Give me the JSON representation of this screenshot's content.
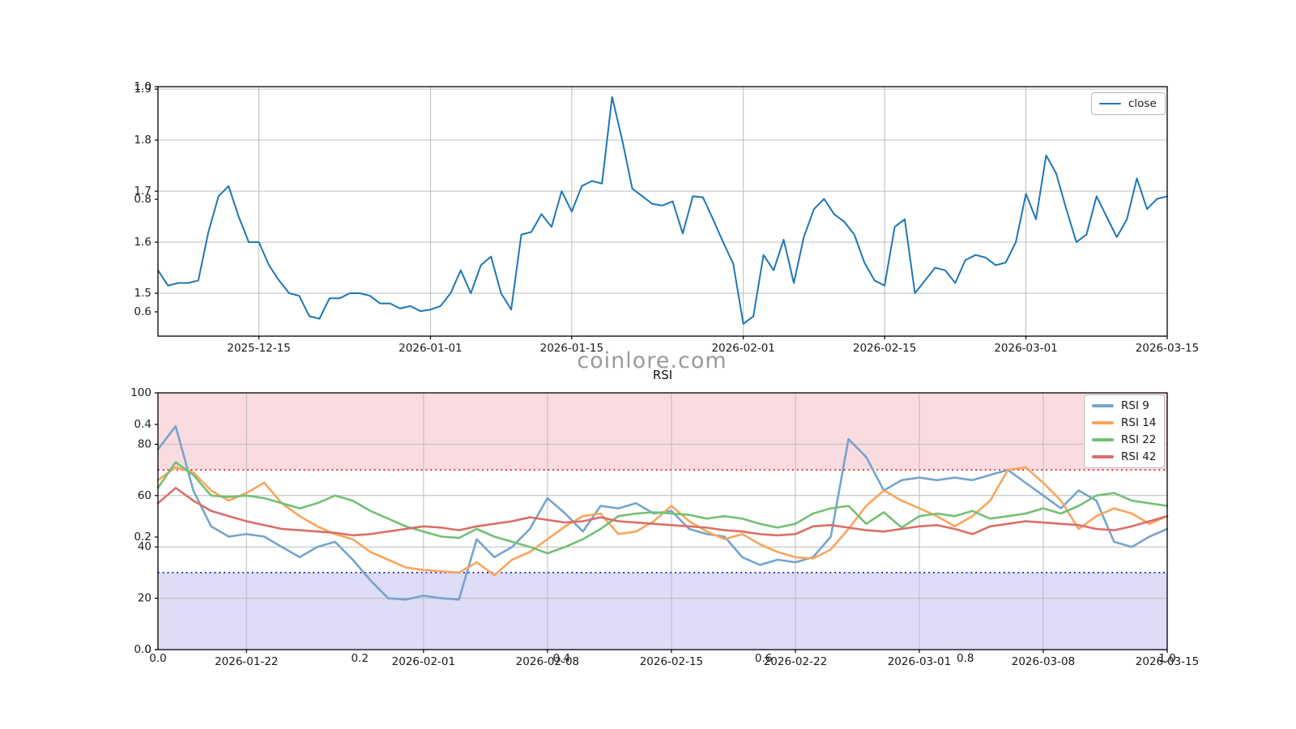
{
  "watermark": "coinlore.com",
  "chart_data": [
    {
      "id": "price",
      "type": "line",
      "title": "",
      "grid": true,
      "legend_position": "upper right",
      "x_start_date": "2025-12-05",
      "x_end_date": "2026-03-15",
      "x_tick_labels": [
        "2025-12-15",
        "2026-01-01",
        "2026-01-15",
        "2026-02-01",
        "2026-02-15",
        "2026-03-01",
        "2026-03-15"
      ],
      "x_tick_index": [
        10,
        27,
        41,
        58,
        72,
        86,
        100
      ],
      "y_ticks": [
        {
          "label": "1.9",
          "v": 1.9
        },
        {
          "label": "1.8",
          "v": 1.8
        },
        {
          "label": "1.7",
          "v": 1.7
        },
        {
          "label": "1.6",
          "v": 1.6
        },
        {
          "label": "1.5",
          "v": 1.5
        }
      ],
      "ylim": [
        1.4159,
        1.9048
      ],
      "series": [
        {
          "name": "close",
          "color": "#1f77b4",
          "width": 2,
          "values": [
            1.545,
            1.515,
            1.52,
            1.52,
            1.525,
            1.62,
            1.69,
            1.71,
            1.65,
            1.6,
            1.6,
            1.555,
            1.525,
            1.5,
            1.495,
            1.455,
            1.45,
            1.49,
            1.49,
            1.5,
            1.5,
            1.495,
            1.48,
            1.48,
            1.47,
            1.475,
            1.465,
            1.468,
            1.475,
            1.5,
            1.545,
            1.5,
            1.555,
            1.572,
            1.5,
            1.468,
            1.615,
            1.62,
            1.655,
            1.63,
            1.7,
            1.66,
            1.71,
            1.72,
            1.715,
            1.885,
            1.8,
            1.705,
            1.69,
            1.675,
            1.672,
            1.68,
            1.617,
            1.69,
            1.688,
            1.645,
            1.6,
            1.558,
            1.44,
            1.455,
            1.575,
            1.545,
            1.605,
            1.52,
            1.61,
            1.665,
            1.685,
            1.655,
            1.64,
            1.615,
            1.56,
            1.525,
            1.515,
            1.63,
            1.645,
            1.5,
            1.525,
            1.55,
            1.545,
            1.52,
            1.565,
            1.575,
            1.57,
            1.555,
            1.56,
            1.6,
            1.695,
            1.645,
            1.77,
            1.735,
            1.665,
            1.6,
            1.615,
            1.69,
            1.65,
            1.61,
            1.645,
            1.725,
            1.665,
            1.685,
            1.69
          ]
        }
      ]
    },
    {
      "id": "rsi",
      "type": "line",
      "title": "RSI",
      "grid": true,
      "legend_position": "upper right",
      "x_start_date": "2026-01-17",
      "x_end_date": "2026-03-15",
      "x_tick_labels": [
        "2026-01-22",
        "2026-02-01",
        "2026-02-08",
        "2026-02-15",
        "2026-02-22",
        "2026-03-01",
        "2026-03-08",
        "2026-03-15"
      ],
      "x_tick_index": [
        5,
        15,
        22,
        29,
        36,
        43,
        50,
        57
      ],
      "y_ticks": [
        {
          "label": "100",
          "v": 100
        },
        {
          "label": "80",
          "v": 80
        },
        {
          "label": "60",
          "v": 60
        },
        {
          "label": "40",
          "v": 40
        },
        {
          "label": "20",
          "v": 20
        },
        {
          "label": "0",
          "v": 0
        }
      ],
      "ylim": [
        0,
        100
      ],
      "bands": [
        {
          "from": 70,
          "to": 100,
          "color": "#fadbdf",
          "name": "overbought-band"
        },
        {
          "from": 0,
          "to": 30,
          "color": "#dedcf6",
          "name": "oversold-band"
        }
      ],
      "hlines": [
        {
          "y": 70,
          "color": "#ee1111",
          "name": "overbought-threshold"
        },
        {
          "y": 30,
          "color": "#1111dd",
          "name": "oversold-threshold"
        }
      ],
      "series": [
        {
          "name": "RSI 9",
          "color": "#76a4cd",
          "width": 2.6,
          "values": [
            78,
            87,
            62,
            48,
            44,
            45,
            44,
            40,
            36,
            40,
            42,
            35,
            27,
            20,
            19.5,
            21,
            20,
            19.5,
            43,
            36,
            40,
            47,
            59,
            53,
            46,
            56,
            55,
            57,
            53,
            54,
            47,
            45,
            44,
            36,
            33,
            35,
            34,
            36,
            44,
            82,
            75,
            62,
            66,
            67,
            66,
            67,
            66,
            68,
            70,
            65,
            60,
            55,
            62,
            58,
            42,
            40,
            44,
            47
          ]
        },
        {
          "name": "RSI 14",
          "color": "#f9a55c",
          "width": 2.6,
          "values": [
            66,
            71,
            69,
            62,
            58,
            61,
            65,
            57,
            52,
            48,
            45,
            43,
            38,
            35,
            32,
            31,
            30.5,
            30,
            34,
            29,
            35,
            38,
            43,
            48,
            52,
            53,
            45,
            46,
            50,
            56,
            50,
            46,
            43,
            45,
            41,
            38,
            36,
            35.5,
            39,
            47,
            56,
            62,
            58,
            55,
            52,
            48,
            52,
            58,
            70,
            71,
            65,
            58,
            47,
            52,
            55,
            53,
            49,
            52
          ]
        },
        {
          "name": "RSI 22",
          "color": "#74c074",
          "width": 2.6,
          "values": [
            63,
            73,
            68,
            60,
            59.5,
            60,
            59,
            57,
            55,
            57,
            60,
            58,
            54,
            51,
            48,
            46,
            44,
            43.5,
            47,
            44,
            42,
            40,
            37.5,
            40,
            43,
            47,
            52,
            53,
            53.5,
            53,
            52.5,
            51,
            52,
            51,
            49,
            47.5,
            49,
            53,
            55,
            56,
            49,
            53.5,
            47.5,
            52,
            53,
            52,
            54,
            51,
            52,
            53,
            55,
            53,
            56,
            60,
            61,
            58,
            57,
            56
          ]
        },
        {
          "name": "RSI 42",
          "color": "#da6f69",
          "width": 2.6,
          "values": [
            57,
            63,
            58,
            54,
            52,
            50,
            48.5,
            47,
            46.5,
            46,
            45.5,
            44.5,
            45,
            46,
            47,
            48,
            47.5,
            46.5,
            48,
            49,
            50,
            51.5,
            50.5,
            49.5,
            50,
            51.5,
            50,
            49.5,
            49,
            48.5,
            48,
            47.5,
            46.5,
            46,
            45,
            44.5,
            45,
            48,
            48.5,
            47.5,
            46.5,
            46,
            47,
            48,
            48.5,
            47,
            45,
            48,
            49,
            50,
            49.5,
            49,
            48.5,
            47,
            46.5,
            48,
            50,
            52
          ]
        }
      ]
    }
  ],
  "overlay_axis": {
    "y_ticks": [
      {
        "label": "1.0",
        "f": 1.0
      },
      {
        "label": "0.8",
        "f": 0.8
      },
      {
        "label": "0.6",
        "f": 0.6
      },
      {
        "label": "0.4",
        "f": 0.4
      },
      {
        "label": "0.2",
        "f": 0.2
      },
      {
        "label": "0.0",
        "f": 0.0
      }
    ],
    "x_ticks": [
      {
        "label": "0.0",
        "f": 0.0
      },
      {
        "label": "0.2",
        "f": 0.2
      },
      {
        "label": "0.4",
        "f": 0.4
      },
      {
        "label": "0.6",
        "f": 0.6
      },
      {
        "label": "0.8",
        "f": 0.8
      },
      {
        "label": "1.0",
        "f": 1.0
      }
    ]
  },
  "style": {
    "grid_color": "#bcbcbc",
    "spine_color": "#000000",
    "label_color": "#1a1a1a",
    "watermark_color": "#9a9a9a"
  }
}
